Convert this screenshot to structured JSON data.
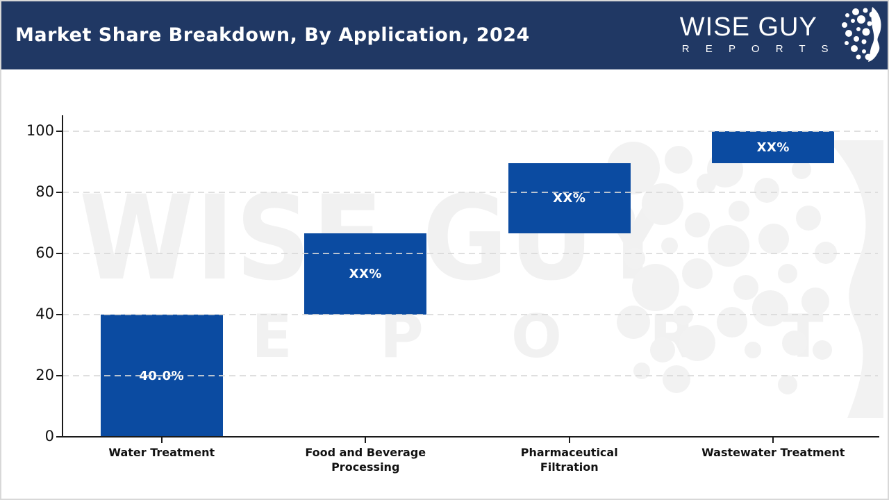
{
  "header": {
    "title": "Market Share Breakdown, By Application, 2024",
    "bg_color": "#203864",
    "logo": {
      "brand": "WISE GUY",
      "sub": "R E P O R T S",
      "head_icon": "dotted-face-profile"
    }
  },
  "watermark": {
    "line1": "WISE GUY",
    "line2": "R E P O R T S",
    "color": "#f1f1f1"
  },
  "chart_data": {
    "type": "bar",
    "subtype": "floating-waterfall",
    "title": "Market Share Breakdown, By Application, 2024",
    "categories": [
      "Water Treatment",
      "Food and Beverage Processing",
      "Pharmaceutical Filtration",
      "Wastewater Treatment"
    ],
    "series": [
      {
        "name": "Market Share (%)",
        "bars": [
          {
            "category": "Water Treatment",
            "start": 0,
            "end": 40,
            "label": "40.0%"
          },
          {
            "category": "Food and Beverage Processing",
            "start": 40,
            "end": 66.7,
            "label": "XX%"
          },
          {
            "category": "Pharmaceutical Filtration",
            "start": 66.7,
            "end": 89.5,
            "label": "XX%"
          },
          {
            "category": "Wastewater Treatment",
            "start": 89.5,
            "end": 100,
            "label": "XX%"
          }
        ]
      }
    ],
    "xlabel": "",
    "ylabel": "",
    "ylim": [
      0,
      100
    ],
    "yticks": [
      0,
      20,
      40,
      60,
      80,
      100
    ],
    "grid": "horizontal-dashed",
    "legend": "none",
    "bar_color": "#0B4BA1",
    "bar_label_color": "#ffffff",
    "axis_color": "#1a1a1a"
  }
}
